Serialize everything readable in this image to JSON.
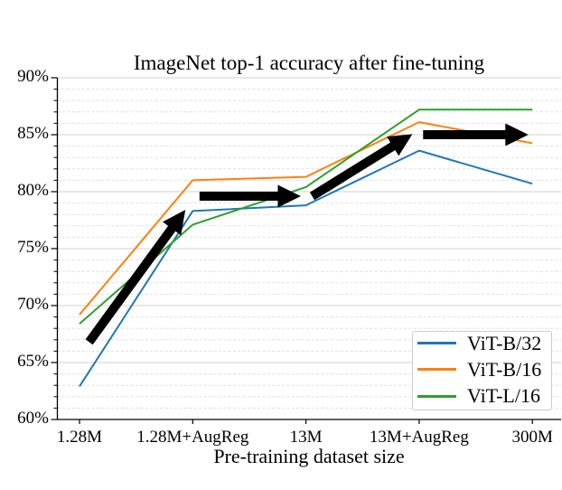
{
  "chart_data": {
    "type": "line",
    "title": "ImageNet top-1 accuracy after fine-tuning",
    "xlabel": "Pre-training dataset size",
    "categories": [
      "1.28M",
      "1.28M+AugReg",
      "13M",
      "13M+AugReg",
      "300M"
    ],
    "series": [
      {
        "name": "ViT-B/32",
        "color": "#1f77b4",
        "values": [
          62.9,
          78.3,
          78.8,
          83.6,
          80.7
        ]
      },
      {
        "name": "ViT-B/16",
        "color": "#ff7f0e",
        "values": [
          69.2,
          81.0,
          81.3,
          86.1,
          84.25
        ]
      },
      {
        "name": "ViT-L/16",
        "color": "#2ca02c",
        "values": [
          68.4,
          77.1,
          80.4,
          87.2,
          87.2
        ]
      }
    ],
    "ylim": [
      60,
      90
    ],
    "yticks": [
      60,
      65,
      70,
      75,
      80,
      85,
      90
    ],
    "ytick_suffix": "%",
    "grid": {
      "major": "solid",
      "minor": "dashed"
    },
    "legend_position": "lower right",
    "annotation_arrows": [
      {
        "from": [
          0.085,
          66.8
        ],
        "to": [
          0.935,
          78.4
        ]
      },
      {
        "from": [
          1.06,
          79.6
        ],
        "to": [
          1.955,
          79.6
        ]
      },
      {
        "from": [
          2.055,
          79.6
        ],
        "to": [
          2.94,
          85.05
        ]
      },
      {
        "from": [
          3.035,
          85.0
        ],
        "to": [
          3.965,
          85.0
        ]
      }
    ],
    "arrow_color": "#000000",
    "grid_major_color": "#d2d2d2",
    "grid_minor_color": "#e0e0e0",
    "axis_color": "#000000"
  }
}
